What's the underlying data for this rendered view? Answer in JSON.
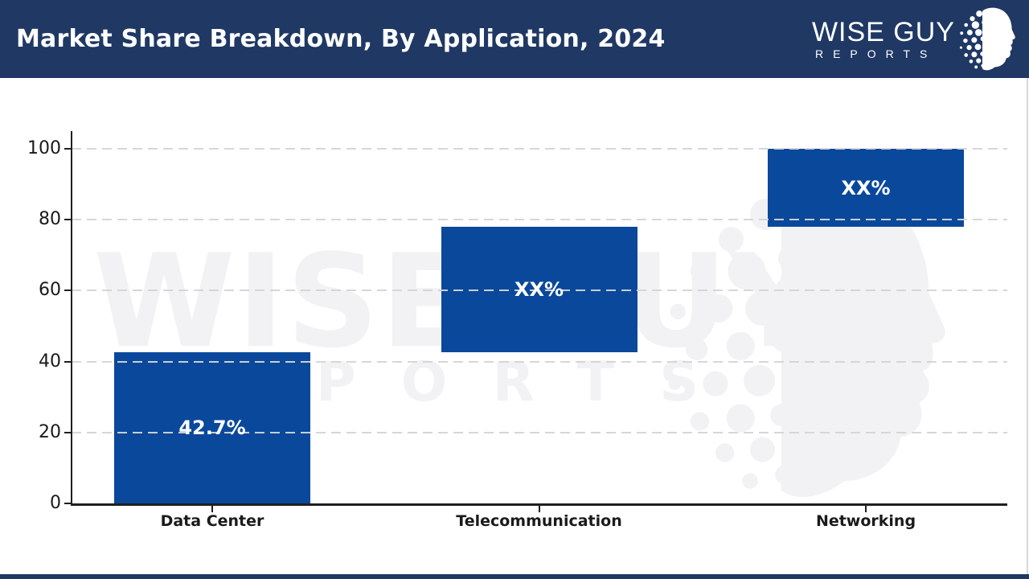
{
  "header": {
    "title": "Market Share Breakdown, By Application, 2024",
    "logo": {
      "wordmark": "WISE GUY",
      "sub": "REPORTS"
    }
  },
  "watermark": {
    "wordmark": "WISE GUY",
    "sub": "REPORTS"
  },
  "chart_data": {
    "type": "bar",
    "variant": "stacked-waterfall",
    "title": "Market Share Breakdown, By Application, 2024",
    "categories": [
      "Data Center",
      "Telecommunication",
      "Networking"
    ],
    "segments": [
      {
        "category": "Data Center",
        "from": 0,
        "to": 42.7,
        "label": "42.7%"
      },
      {
        "category": "Telecommunication",
        "from": 42.7,
        "to": 78,
        "label": "XX%"
      },
      {
        "category": "Networking",
        "from": 78,
        "to": 100,
        "label": "XX%"
      }
    ],
    "yticks": [
      0,
      20,
      40,
      60,
      80,
      100
    ],
    "ylim": [
      0,
      105
    ],
    "xlabel": "",
    "ylabel": "",
    "grid": {
      "horizontal": true,
      "style": "dashed",
      "drawn_over_bars": true
    },
    "legend": "none"
  },
  "colors": {
    "header_bg": "#1f3864",
    "footer_bg": "#1f3864",
    "bar": "#0a489c",
    "bar_label": "#ffffff",
    "axis": "#1f1f1f",
    "grid": "#d5d5d5",
    "watermark": "#f2f2f4",
    "title_text": "#ffffff"
  }
}
